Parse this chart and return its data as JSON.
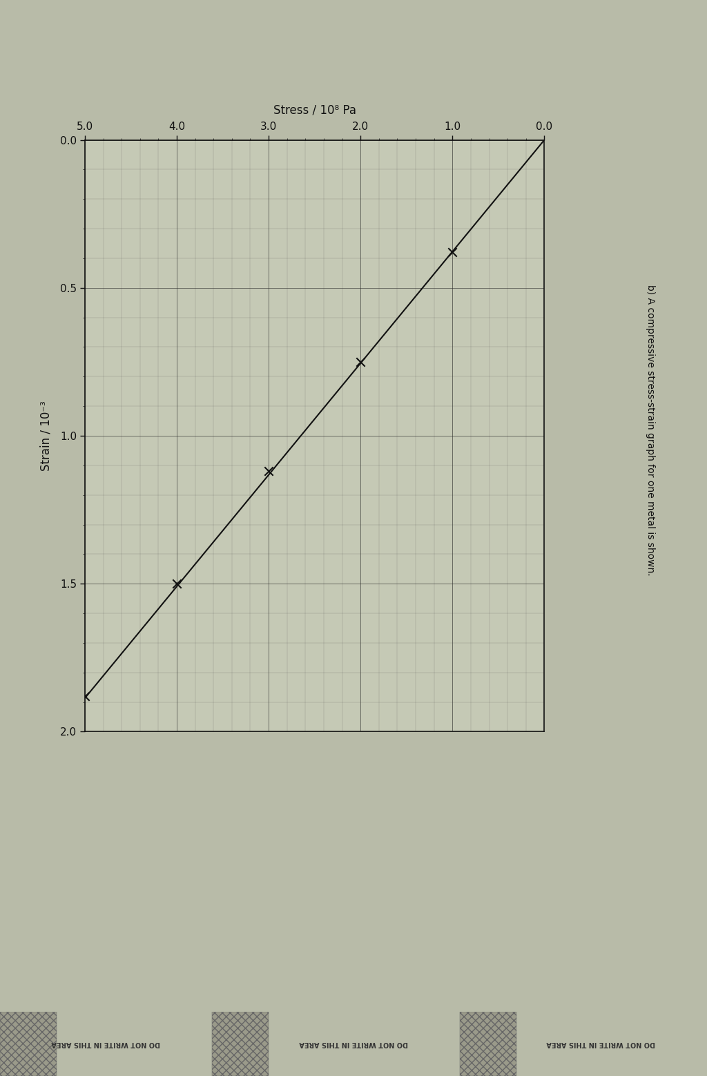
{
  "title": "b) A compressive stress-strain graph for one metal is shown.",
  "ylabel": "Strain / 10⁻³",
  "xlabel": "Stress / 10⁸ Pa",
  "stress_axis_lim": [
    0.0,
    5.0
  ],
  "strain_axis_lim": [
    0.0,
    2.0
  ],
  "stress_ticks": [
    0.0,
    1.0,
    2.0,
    3.0,
    4.0,
    5.0
  ],
  "strain_ticks": [
    0.0,
    0.5,
    1.0,
    1.5,
    2.0
  ],
  "data_points_stress": [
    1.0,
    2.0,
    3.0,
    4.0,
    5.0
  ],
  "data_points_strain": [
    0.38,
    0.75,
    1.12,
    1.5,
    1.88
  ],
  "line_stress": [
    0.0,
    5.3
  ],
  "line_strain": [
    0.0,
    2.0
  ],
  "bg_color": "#b8bba8",
  "paper_color": "#c5c9b5",
  "grid_major_color": "#2a2a2a",
  "grid_minor_color": "#3a3a3a",
  "line_color": "#111111",
  "text_color": "#111111",
  "do_not_write_bg": "#a0a090",
  "do_not_write_text": "DO NOT WRITE IN THIS AREA",
  "minor_stress_step": 0.2,
  "minor_strain_step": 0.1,
  "tick_fontsize": 11,
  "label_fontsize": 12,
  "title_fontsize": 10
}
